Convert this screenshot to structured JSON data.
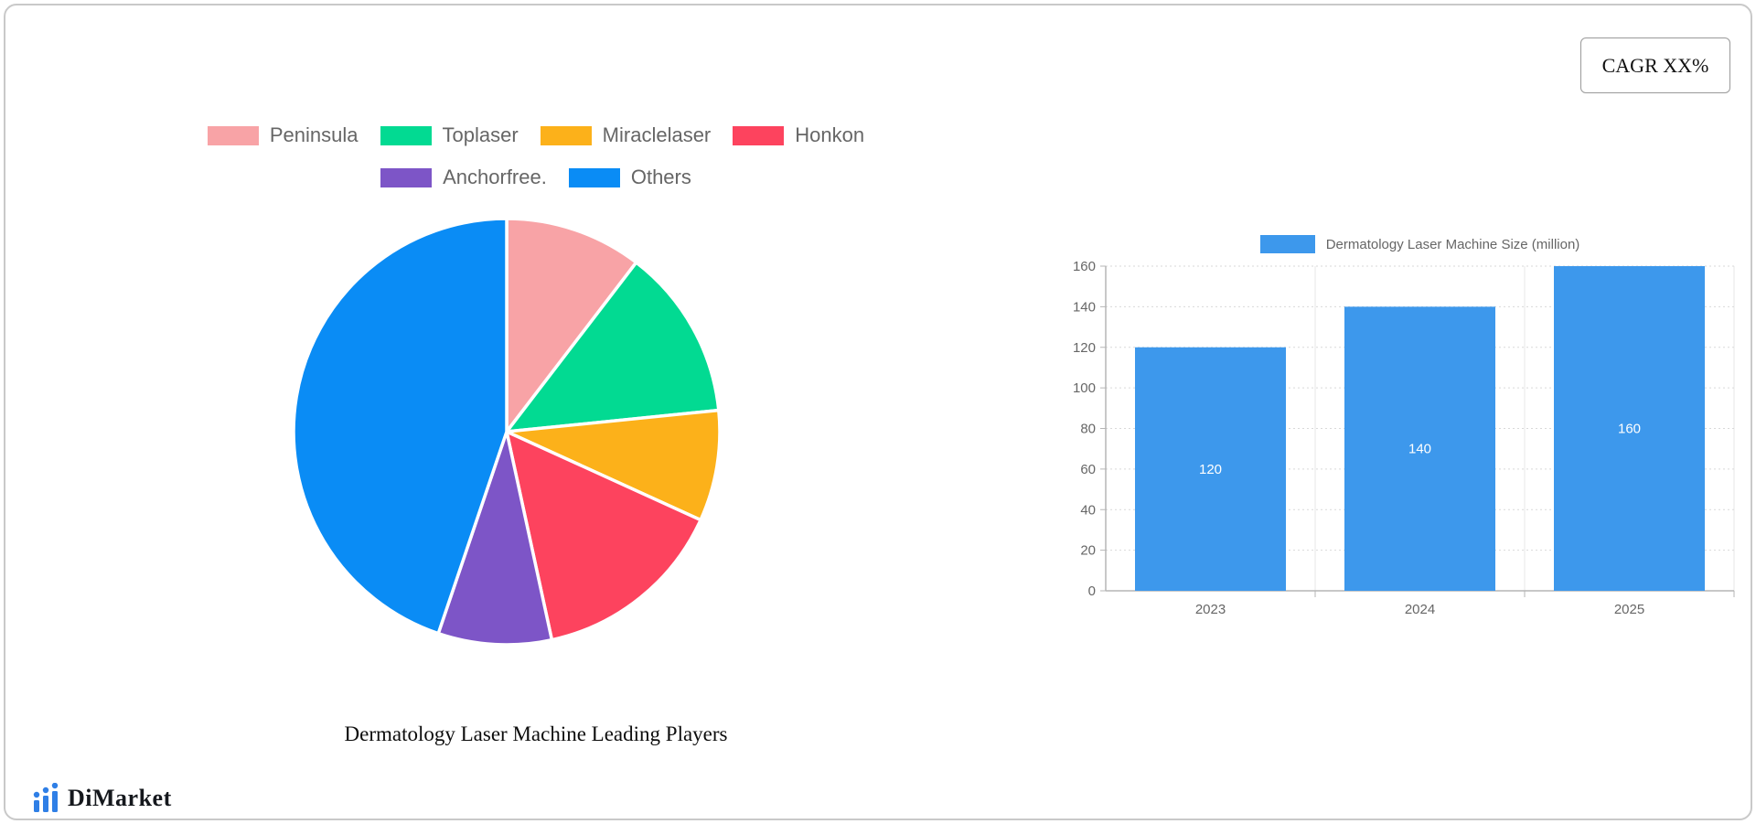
{
  "cagr_label": "CAGR XX%",
  "brand": {
    "name": "DiMarket",
    "accent_color": "#2f7fe6"
  },
  "colors": {
    "bar_blue": "#3d98ec",
    "legend_text": "#666666",
    "axis_text": "#666666",
    "grid_line": "#d9d9d9",
    "axis_line": "#b5b5b5"
  },
  "chart_data": [
    {
      "type": "pie",
      "title": "Dermatology Laser Machine Leading Players",
      "labels": [
        "Peninsula",
        "Toplaser",
        "Miraclelaser",
        "Honkon",
        "Anchorfree.",
        "Others"
      ],
      "values": [
        10.4,
        13.0,
        8.4,
        14.8,
        8.6,
        44.8
      ],
      "unit": "percent (estimated from slice angles)",
      "colors": [
        "#f8a3a6",
        "#02da92",
        "#fcb11a",
        "#fd435e",
        "#7d55c7",
        "#0a8cf5"
      ],
      "legend_position": "top",
      "legend_rows": 2,
      "start_angle_deg": 0,
      "direction": "clockwise",
      "slice_border_color": "#ffffff"
    },
    {
      "type": "bar",
      "series_label": "Dermatology Laser Machine Size (million)",
      "categories": [
        "2023",
        "2024",
        "2025"
      ],
      "values": [
        120,
        140,
        160
      ],
      "ylim": [
        0,
        160
      ],
      "ytick_step": 20,
      "yticks": [
        0,
        20,
        40,
        60,
        80,
        100,
        120,
        140,
        160
      ],
      "bar_color": "#3d98ec",
      "value_label_color": "#ffffff",
      "grid": true,
      "legend_position": "top"
    }
  ]
}
